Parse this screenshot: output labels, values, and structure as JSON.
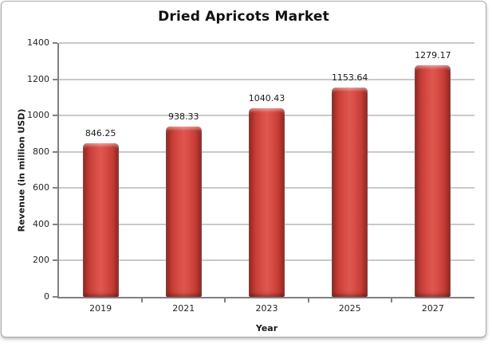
{
  "figure": {
    "title": "Dried Apricots Market",
    "background_color": "#ffffff",
    "border_color": "#ababab"
  },
  "chart_data": {
    "type": "bar",
    "title": "Dried Apricots Market",
    "categories": [
      "2019",
      "2021",
      "2023",
      "2025",
      "2027"
    ],
    "values": [
      846.25,
      938.33,
      1040.43,
      1153.64,
      1279.17
    ],
    "value_labels": [
      "846.25",
      "938.33",
      "1040.43",
      "1153.64",
      "1279.17"
    ],
    "xlabel": "Year",
    "ylabel": "Revenue (in million USD)",
    "ylim": [
      0,
      1400
    ],
    "yticks": [
      0,
      200,
      400,
      600,
      800,
      1000,
      1200,
      1400
    ],
    "grid": true,
    "legend": false,
    "bar_color_center": "#de574f",
    "bar_color_edge": "#7e1e1a",
    "gridline_color": "#c9c9c9",
    "axis_color": "#808080",
    "text_color": "#262626"
  }
}
